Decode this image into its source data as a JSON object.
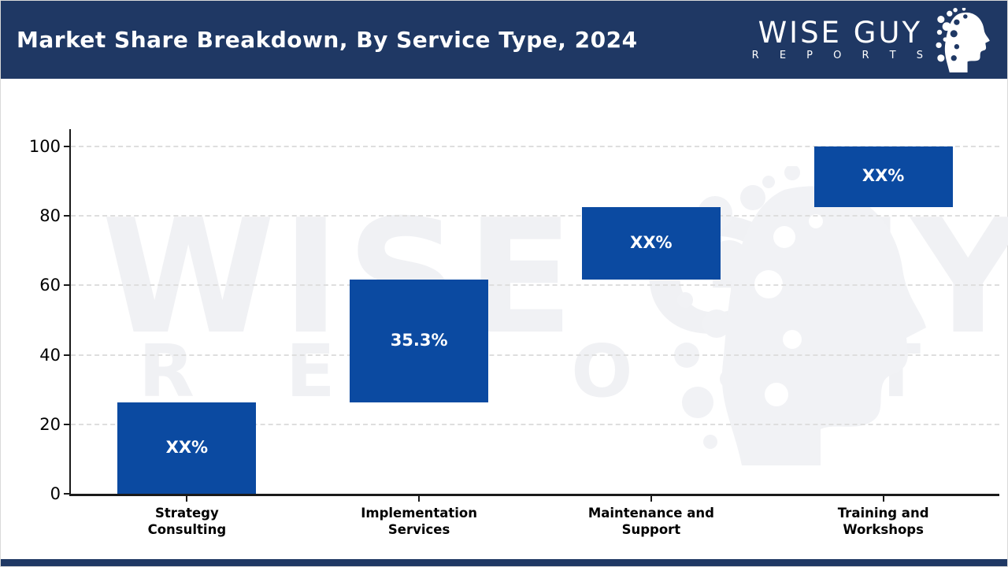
{
  "header": {
    "title": "Market Share Breakdown, By Service Type, 2024",
    "logo": {
      "line1": "WISE GUY",
      "line2": "R E P O R T S"
    }
  },
  "watermark": {
    "line1": "WISE GUY",
    "line2": "R E P O R T S"
  },
  "colors": {
    "navy": "#1f3864",
    "bar_blue": "#0b4aa1",
    "grid_gray": "#dedede",
    "watermark_gray": "#f0f1f4",
    "axis_black": "#1a1a1a",
    "label_white": "#ffffff"
  },
  "chart_data": {
    "type": "bar",
    "variant": "floating-waterfall",
    "title": "Market Share Breakdown, By Service Type, 2024",
    "categories": [
      "Strategy Consulting",
      "Implementation Services",
      "Maintenance and Support",
      "Training and Workshops"
    ],
    "category_lines": [
      [
        "Strategy",
        "Consulting"
      ],
      [
        "Implementation",
        "Services"
      ],
      [
        "Maintenance and",
        "Support"
      ],
      [
        "Training and",
        "Workshops"
      ]
    ],
    "bars": [
      {
        "category": "Strategy Consulting",
        "start": 0,
        "end": 26.3,
        "value": 26.3,
        "label": "XX%"
      },
      {
        "category": "Implementation Services",
        "start": 26.3,
        "end": 61.6,
        "value": 35.3,
        "label": "35.3%"
      },
      {
        "category": "Maintenance and Support",
        "start": 61.6,
        "end": 82.6,
        "value": 21.0,
        "label": "XX%"
      },
      {
        "category": "Training and Workshops",
        "start": 82.6,
        "end": 100,
        "value": 17.4,
        "label": "XX%"
      }
    ],
    "xlabel": "",
    "ylabel": "",
    "ylim": [
      0,
      100
    ],
    "yticks": [
      0,
      20,
      40,
      60,
      80,
      100
    ],
    "grid": "horizontal-dashed",
    "legend": "none"
  }
}
